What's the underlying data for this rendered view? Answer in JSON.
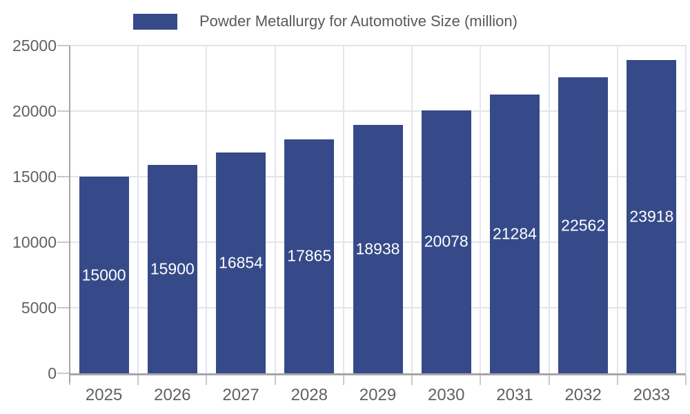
{
  "chart_data": {
    "type": "bar",
    "title": "",
    "categories": [
      "2025",
      "2026",
      "2027",
      "2028",
      "2029",
      "2030",
      "2031",
      "2032",
      "2033"
    ],
    "series": [
      {
        "name": "Powder Metallurgy for Automotive Size (million)",
        "values": [
          15000,
          15900,
          16854,
          17865,
          18938,
          20078,
          21284,
          22562,
          23918
        ]
      }
    ],
    "bar_labels": [
      "15000",
      "15900",
      "16854",
      "17865",
      "18938",
      "20078",
      "21284",
      "22562",
      "23918"
    ],
    "xlabel": "",
    "ylabel": "",
    "ylim": [
      0,
      25000
    ],
    "yticks": [
      0,
      5000,
      10000,
      15000,
      20000,
      25000
    ],
    "ytick_labels": [
      "0",
      "5000",
      "10000",
      "15000",
      "20000",
      "25000"
    ],
    "grid": "on",
    "legend_position": "top",
    "colors": {
      "bar_fill": "#364a89",
      "bar_value_text": "#ffffff",
      "legend_text": "#595959",
      "axis_tick_text": "#616161",
      "axis_line": "#a6a6a6",
      "gridline_horizontal": "#e4e4e4",
      "gridline_vertical": "#e3e5ef",
      "background": "#ffffff"
    }
  },
  "legend": {
    "label": "Powder Metallurgy for Automotive Size (million)",
    "swatch_color": "#364a89"
  }
}
